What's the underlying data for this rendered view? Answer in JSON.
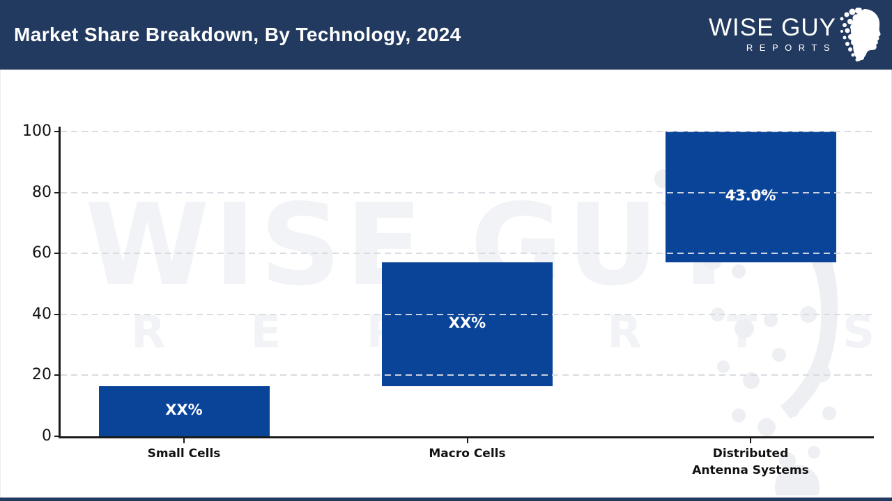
{
  "header": {
    "title": "Market Share Breakdown, By Technology, 2024",
    "logo": {
      "line1": "WISE GUY",
      "line2": "REPORTS"
    },
    "bg_color": "#223A5F"
  },
  "watermark": {
    "line1": "WISE GUY",
    "line2": "R E P O R T S"
  },
  "colors": {
    "header_navy": "#223A5F",
    "bar_blue": "#0A4498",
    "axis_black": "#1a1a1a",
    "gridline_gray": "#d9dce0",
    "watermark_gray": "#f2f3f6"
  },
  "chart_data": {
    "type": "bar",
    "subtype": "waterfall",
    "title": "Market Share Breakdown, By Technology, 2024",
    "categories": [
      "Small Cells",
      "Macro Cells",
      "Distributed Antenna Systems"
    ],
    "category_lines": [
      [
        "Small Cells"
      ],
      [
        "Macro Cells"
      ],
      [
        "Distributed",
        "Antenna Systems"
      ]
    ],
    "segments": [
      {
        "category": "Small Cells",
        "start": 0,
        "value": 16.5,
        "label": "XX%"
      },
      {
        "category": "Macro Cells",
        "start": 16.5,
        "value": 40.5,
        "label": "XX%"
      },
      {
        "category": "Distributed Antenna Systems",
        "start": 57,
        "value": 43,
        "label": "43.0%"
      }
    ],
    "xlabel": "",
    "ylabel": "",
    "yticks": [
      0,
      20,
      40,
      60,
      80,
      100
    ],
    "ylim": [
      0,
      100
    ],
    "grid": "horizontal-dashed",
    "legend": null,
    "bar_color": "#0A4498",
    "bar_label_color": "#ffffff"
  }
}
